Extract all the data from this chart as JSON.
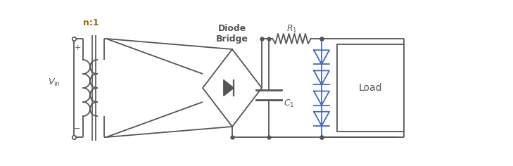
{
  "title_label": "Diode\nBridge",
  "n1_label": "n:1",
  "vin_label": "$V_{\\mathrm{in}}$",
  "r1_label": "$R_1$",
  "c1_label": "$C_1$",
  "load_label": "Load",
  "plus_label": "+",
  "minus_label": "−",
  "bg_color": "#ffffff",
  "line_color": "#555555",
  "blue_color": "#4466cc",
  "label_color": "#222222",
  "n1_color": "#996600",
  "fig_width": 7.29,
  "fig_height": 2.36,
  "dpi": 100
}
